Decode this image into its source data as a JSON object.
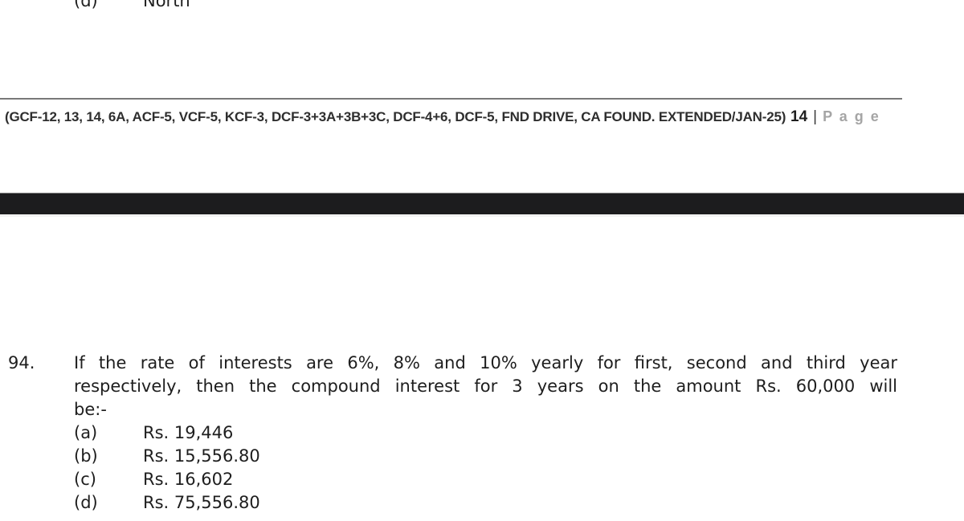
{
  "prev_question": {
    "option_label": "(d)",
    "option_value": "North"
  },
  "footer": {
    "course_codes": "(GCF-12, 13, 14, 6A, ACF-5, VCF-5, KCF-3, DCF-3+3A+3B+3C, DCF-4+6, DCF-5, FND DRIVE, CA FOUND. EXTENDED/JAN-25)",
    "page_number": "14",
    "page_separator": "|",
    "page_word": "P a g e"
  },
  "question": {
    "number": "94.",
    "lines": [
      "If the rate of interests are 6%, 8% and 10% yearly for first, second and third year",
      "respectively, then the compound interest for 3 years on the amount Rs. 60,000 will",
      "be:-"
    ],
    "options": [
      {
        "label": "(a)",
        "value": "Rs. 19,446"
      },
      {
        "label": "(b)",
        "value": "Rs. 15,556.80"
      },
      {
        "label": "(c)",
        "value": "Rs. 16,602"
      },
      {
        "label": "(d)",
        "value": "Rs. 75,556.80"
      }
    ]
  },
  "colors": {
    "page_background": "#ffffff",
    "body_text": "#1e1e1e",
    "footer_text": "#2e2e2e",
    "footer_rule": "#787878",
    "page_word_gray": "#a5a5a5",
    "page_break_bar": "#1c1c1e",
    "page_break_strip": "#f2f2f2"
  }
}
